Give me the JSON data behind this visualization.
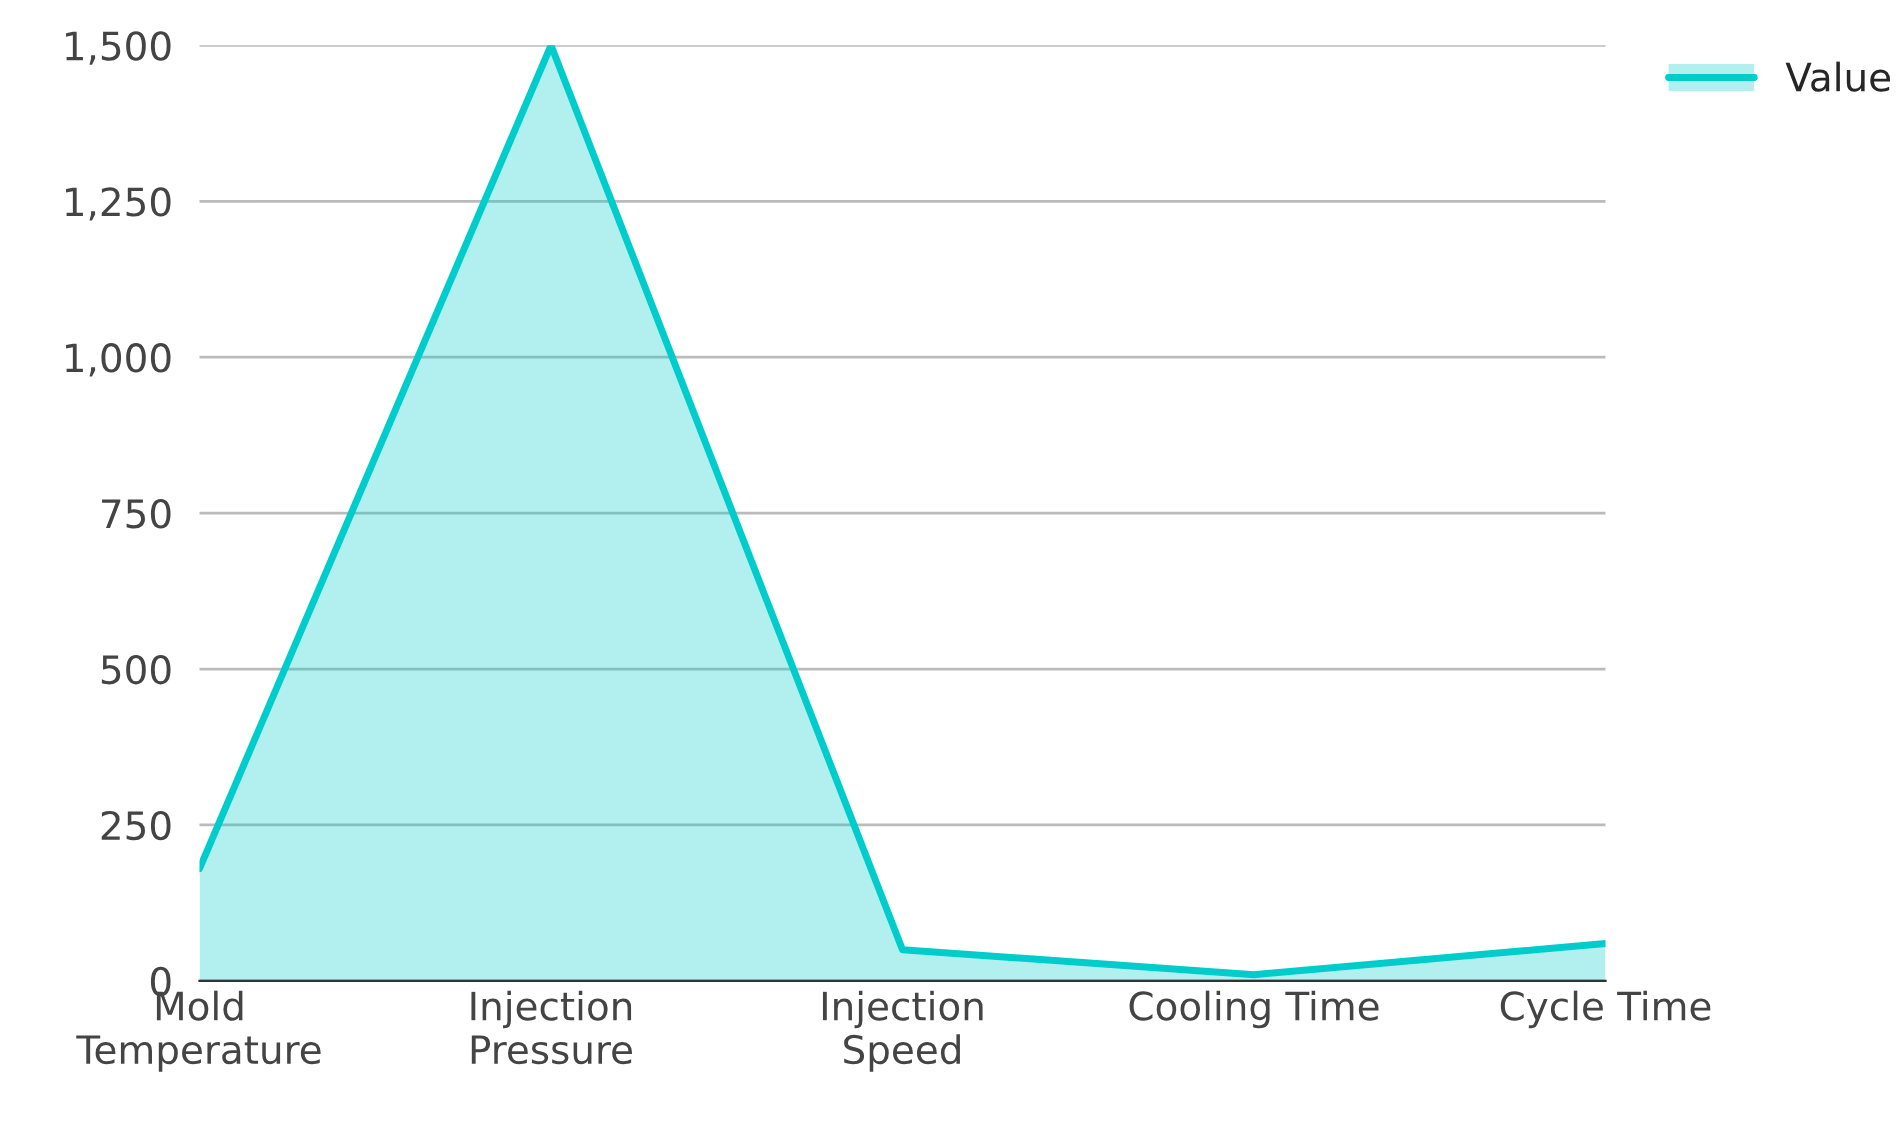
{
  "chart_data": {
    "type": "area",
    "categories": [
      "Mold Temperature",
      "Injection Pressure",
      "Injection Speed",
      "Cooling Time",
      "Cycle Time"
    ],
    "series": [
      {
        "name": "Value",
        "color": "#00cccc",
        "values": [
          180,
          1500,
          50,
          10,
          60
        ]
      }
    ],
    "ylim": [
      0,
      1500
    ],
    "yticks": [
      {
        "value": 0,
        "label": "0"
      },
      {
        "value": 250,
        "label": "250"
      },
      {
        "value": 500,
        "label": "500"
      },
      {
        "value": 750,
        "label": "750"
      },
      {
        "value": 1000,
        "label": "1,000"
      },
      {
        "value": 1250,
        "label": "1,250"
      },
      {
        "value": 1500,
        "label": "1,500"
      }
    ],
    "grid": "y",
    "legend": "top right"
  }
}
